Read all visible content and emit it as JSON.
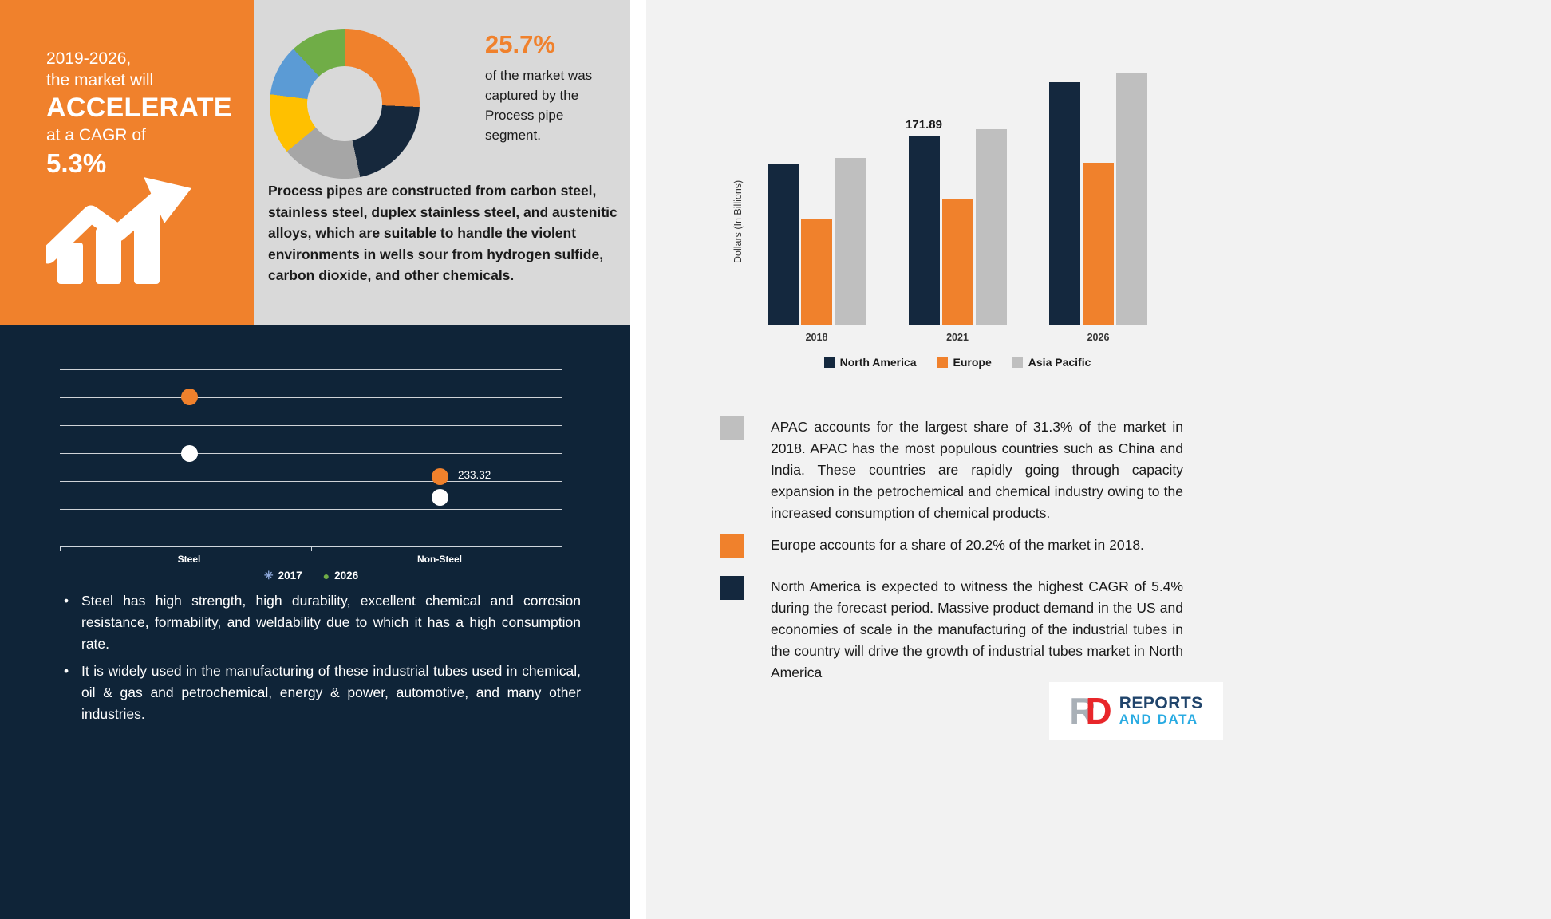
{
  "colors": {
    "orange": "#f0812c",
    "navy_panel": "#0f2438",
    "navy_bar": "#14283e",
    "gray_panel": "#d9d9d9",
    "gray_bar": "#bfbfbf",
    "right_bg": "#f2f2f2"
  },
  "cagr_panel": {
    "line1": "2019-2026,",
    "line2": "the market will",
    "line3": "ACCELERATE",
    "line4": "at a CAGR of",
    "line5": "5.3%"
  },
  "process_panel": {
    "stat_value": "25.7%",
    "stat_caption": "of the market was captured by the Process pipe segment.",
    "description": "Process pipes are constructed from carbon steel, stainless steel, duplex stainless steel, and austenitic alloys, which are suitable to handle the violent environments in wells sour from hydrogen sulfide, carbon dioxide, and other chemicals."
  },
  "steel_section": {
    "bullets": [
      "Steel has high strength, high durability, excellent chemical and corrosion resistance, formability, and weldability due to which it has a high consumption rate.",
      "It is widely used in the manufacturing of these industrial tubes used in chemical, oil & gas and petrochemical, energy & power, automotive, and many other industries."
    ]
  },
  "regional_section": {
    "insights": [
      {
        "color": "#bfbfbf",
        "text": "APAC accounts for the largest share of 31.3% of the market in 2018. APAC has the most populous countries such as China and India. These countries are rapidly going through capacity expansion in the petrochemical and chemical industry owing to the increased consumption of chemical products."
      },
      {
        "color": "#f0812c",
        "text": "Europe accounts for a share of 20.2% of the market in 2018."
      },
      {
        "color": "#14283e",
        "text": "North America is expected to witness the highest CAGR of 5.4% during the forecast period. Massive product demand in the US and economies of scale in the manufacturing of the industrial tubes in the country will drive the growth of industrial tubes market in North America"
      }
    ]
  },
  "logo": {
    "mark_r": "R",
    "mark_d": "D",
    "line1": "REPORTS",
    "line2": "AND DATA"
  },
  "chart_data": [
    {
      "id": "segment-donut",
      "type": "pie",
      "slices": [
        {
          "label": "Process pipe",
          "value": 25.7,
          "color": "#f0812c"
        },
        {
          "label": "segment-2",
          "value": 21.0,
          "color": "#16283c"
        },
        {
          "label": "segment-3",
          "value": 17.3,
          "color": "#a6a6a6"
        },
        {
          "label": "segment-4",
          "value": 13.0,
          "color": "#ffc000"
        },
        {
          "label": "segment-5",
          "value": 11.0,
          "color": "#5b9bd5"
        },
        {
          "label": "segment-6",
          "value": 12.0,
          "color": "#70ad47"
        }
      ]
    },
    {
      "id": "steel-dot-plot",
      "type": "scatter",
      "categories": [
        "Steel",
        "Non-Steel"
      ],
      "series": [
        {
          "name": "2017",
          "color": "#f0812c",
          "values": [
            495,
            233.32
          ]
        },
        {
          "name": "2026",
          "color": "#ffffff",
          "values": [
            310,
            165
          ]
        }
      ],
      "data_labels": [
        {
          "series": "2017",
          "category": "Non-Steel",
          "text": "233.32"
        }
      ],
      "ylim": [
        0,
        600
      ],
      "grid": true,
      "legend_position": "bottom",
      "legend_markers": [
        {
          "label": "2017",
          "glyph": "✳",
          "color": "#8faadc"
        },
        {
          "label": "2026",
          "glyph": "●",
          "color": "#70ad47"
        }
      ]
    },
    {
      "id": "regional-bar-chart",
      "type": "bar",
      "categories": [
        "2018",
        "2021",
        "2026"
      ],
      "series": [
        {
          "name": "North America",
          "color": "#14283e",
          "values": [
            146,
            171.89,
            221
          ]
        },
        {
          "name": "Europe",
          "color": "#f0812c",
          "values": [
            97,
            115,
            148
          ]
        },
        {
          "name": "Asia Pacific",
          "color": "#bfbfbf",
          "values": [
            152,
            178,
            230
          ]
        }
      ],
      "ylabel": "Dollars (In Billions)",
      "data_labels": [
        {
          "series": "North America",
          "category": "2021",
          "text": "171.89"
        }
      ],
      "ylim": [
        0,
        240
      ],
      "grid": false,
      "legend_position": "bottom"
    }
  ]
}
